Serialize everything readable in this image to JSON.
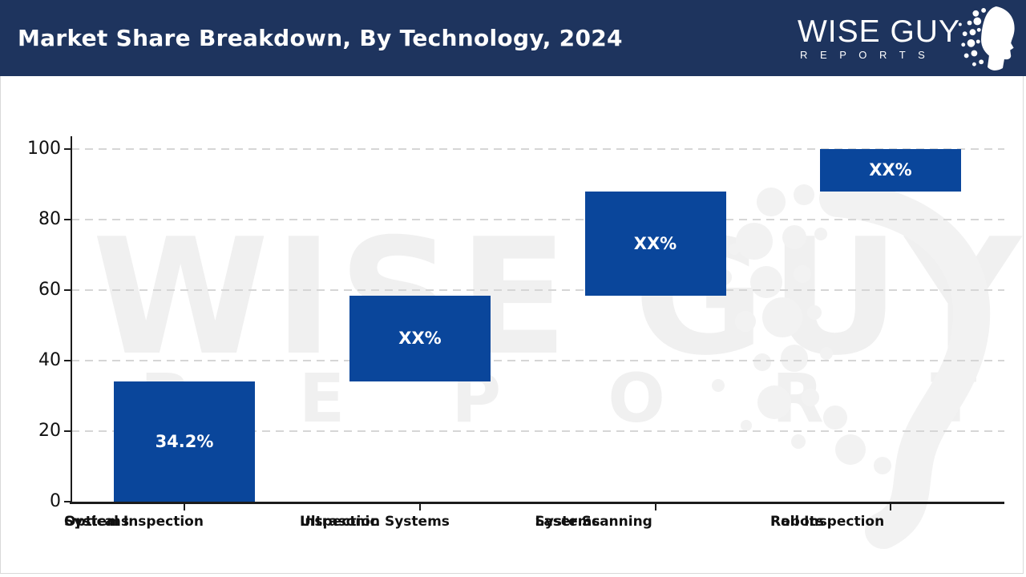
{
  "header": {
    "title": "Market Share Breakdown, By Technology, 2024",
    "logo": {
      "line1": "WISE GUY",
      "line2": "R E P O R T S"
    }
  },
  "watermark": {
    "line1": "WISE GUY",
    "line2": "R E P O R T S"
  },
  "colors": {
    "header_bg": "#1e345e",
    "bar_fill": "#0a469b",
    "bar_label": "#ffffff",
    "grid": "#d6d6d6",
    "axis": "#1c1c1c",
    "watermark": "#f0f0f0"
  },
  "chart_data": {
    "type": "bar",
    "subtype": "waterfall-floating-bars",
    "title": "Market Share Breakdown, By Technology, 2024",
    "categories": [
      "Optical Inspection Systems",
      "Ultrasonic Inspection Systems",
      "Laser Scanning Systems",
      "Rail Inspection Robots"
    ],
    "category_lines": [
      [
        "Optical Inspection",
        "Systems"
      ],
      [
        "Ultrasonic",
        "Inspection Systems"
      ],
      [
        "Laser Scanning",
        "Systems"
      ],
      [
        "Rail Inspection",
        "Robots"
      ]
    ],
    "bars": [
      {
        "category": "Optical Inspection Systems",
        "start": 0,
        "end": 34.2,
        "label": "34.2%"
      },
      {
        "category": "Ultrasonic Inspection Systems",
        "start": 34.2,
        "end": 58.4,
        "label": "XX%"
      },
      {
        "category": "Laser Scanning Systems",
        "start": 58.4,
        "end": 88,
        "label": "XX%"
      },
      {
        "category": "Rail Inspection Robots",
        "start": 88,
        "end": 100,
        "label": "XX%"
      }
    ],
    "ylabel": "",
    "xlabel": "",
    "ylim": [
      0,
      105
    ],
    "yticks": [
      0,
      20,
      40,
      60,
      80,
      100
    ],
    "grid": "horizontal dashed",
    "legend": "none"
  }
}
